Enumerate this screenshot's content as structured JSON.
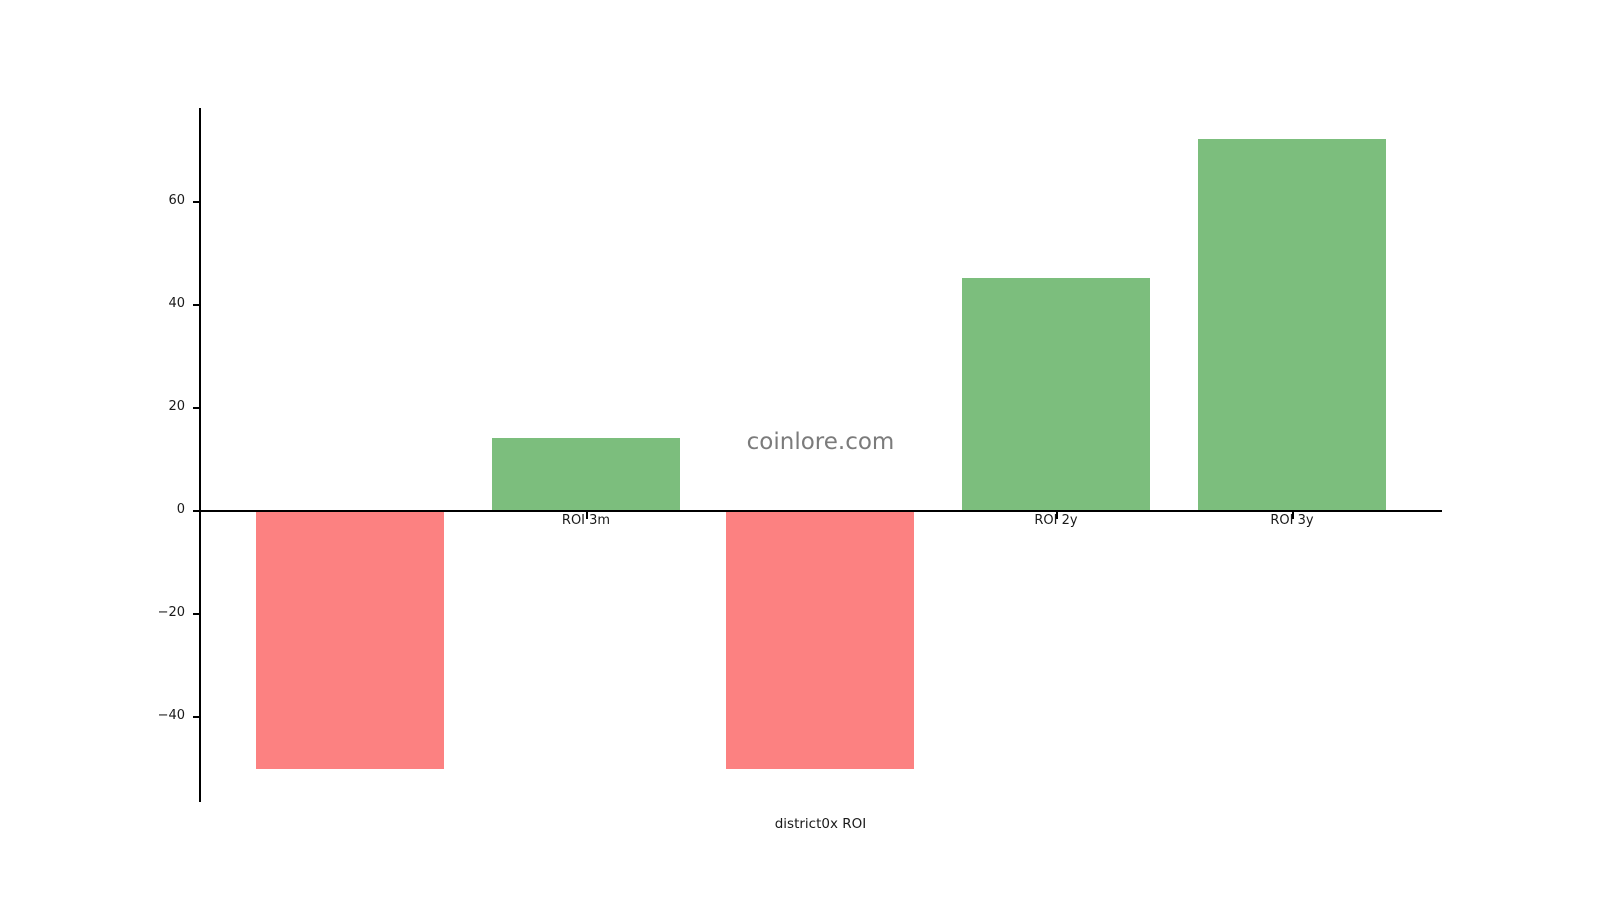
{
  "page": {
    "background": "#ffffff"
  },
  "watermark": {
    "text": "coinlore.com",
    "color": "#7b7b7b"
  },
  "chart_data": {
    "type": "bar",
    "title": "district0x ROI",
    "categories": [
      "",
      "ROI 3m",
      "",
      "ROI 2y",
      "ROI 3y"
    ],
    "values": [
      -50,
      14,
      -50,
      45,
      72
    ],
    "colors": {
      "positive": "#7cbe7d",
      "negative": "#fc8181"
    },
    "y_ticks": [
      {
        "label": "60",
        "value": 60
      },
      {
        "label": "40",
        "value": 40
      },
      {
        "label": "20",
        "value": 20
      },
      {
        "label": "0",
        "value": 0
      },
      {
        "label": "−20",
        "value": -20
      },
      {
        "label": "−40",
        "value": -40
      }
    ],
    "ylim": [
      -56,
      78
    ],
    "xlabel": "",
    "ylabel": "",
    "grid": false,
    "legend": "none",
    "axis_color": "#000000",
    "text_color": "#1a1a1a"
  }
}
